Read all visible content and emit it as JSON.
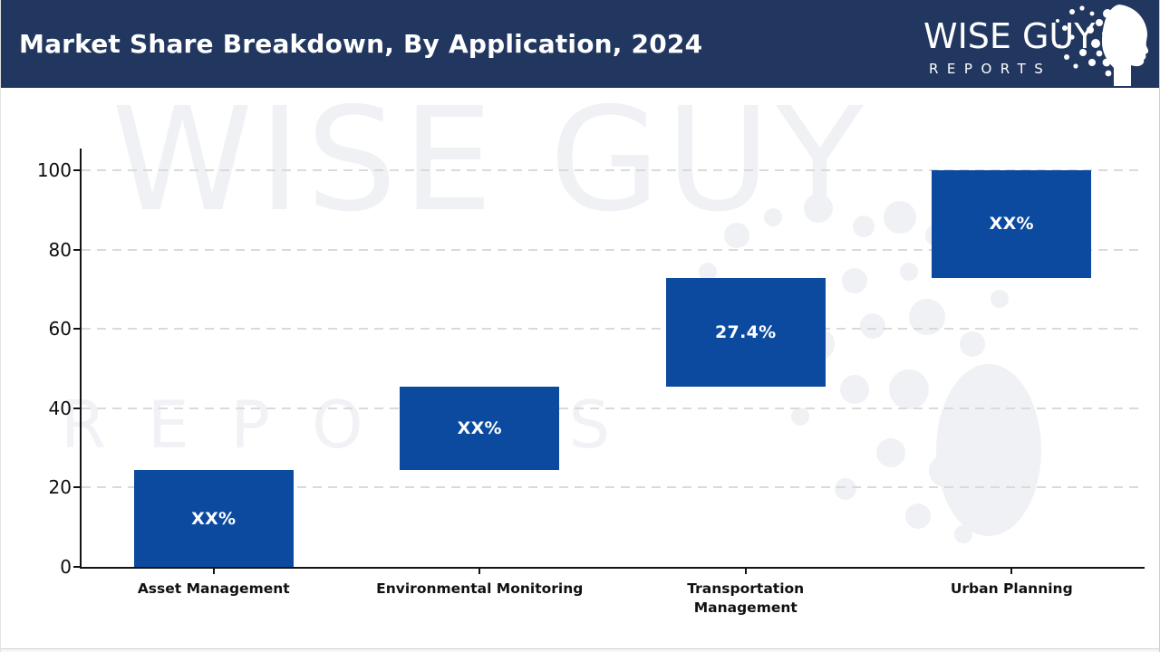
{
  "header": {
    "title": "Market Share Breakdown, By Application, 2024",
    "bg_color": "#22375f",
    "logo": {
      "line1": "WISE GUY",
      "line2": "REPORTS"
    }
  },
  "watermark": {
    "line1": "WISE GUY",
    "line2": "REPORTS"
  },
  "chart_data": {
    "type": "bar",
    "subtype": "floating-waterfall",
    "title": "Market Share Breakdown, By Application, 2024",
    "categories": [
      "Asset Management",
      "Environmental Monitoring",
      "Transportation Management",
      "Urban Planning"
    ],
    "series": [
      {
        "name": "Market Share (%)",
        "segments": [
          {
            "category": "Asset Management",
            "start": 0,
            "end": 24.4,
            "label": "XX%"
          },
          {
            "category": "Environmental Monitoring",
            "start": 24.4,
            "end": 45.5,
            "label": "XX%"
          },
          {
            "category": "Transportation Management",
            "start": 45.5,
            "end": 72.9,
            "label": "27.4%"
          },
          {
            "category": "Urban Planning",
            "start": 72.9,
            "end": 100,
            "label": "XX%"
          }
        ]
      }
    ],
    "ylim": [
      0,
      100
    ],
    "yticks": [
      0,
      20,
      40,
      60,
      80,
      100
    ],
    "xlabel": "",
    "ylabel": "",
    "grid": "dashed-horizontal",
    "legend_position": "none",
    "bar_color": "#0b4a9e",
    "bar_label_color": "#ffffff",
    "axis_color": "#141414",
    "grid_color": "#dadada"
  }
}
